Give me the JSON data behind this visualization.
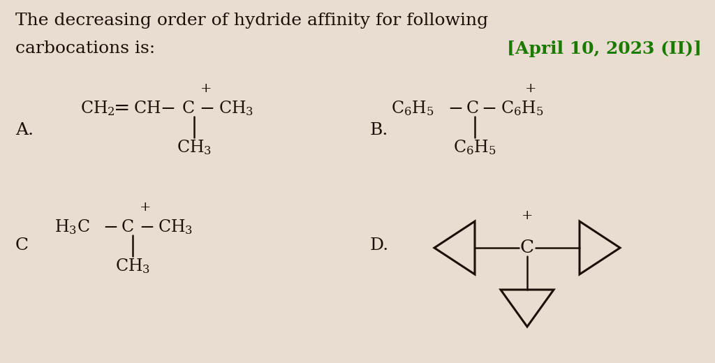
{
  "title_line1": "The decreasing order of hydride affinity for following",
  "title_line2": "carbocations is:",
  "tag": "[April 10, 2023 (II)]",
  "background_color": "#e8ddd0",
  "text_color": "#1a1008",
  "tag_color": "#1a7a00",
  "title_fontsize": 18,
  "tag_fontsize": 18,
  "label_fontsize": 18,
  "chem_fontsize": 17,
  "fig_width": 10.24,
  "fig_height": 5.2,
  "dpi": 100
}
